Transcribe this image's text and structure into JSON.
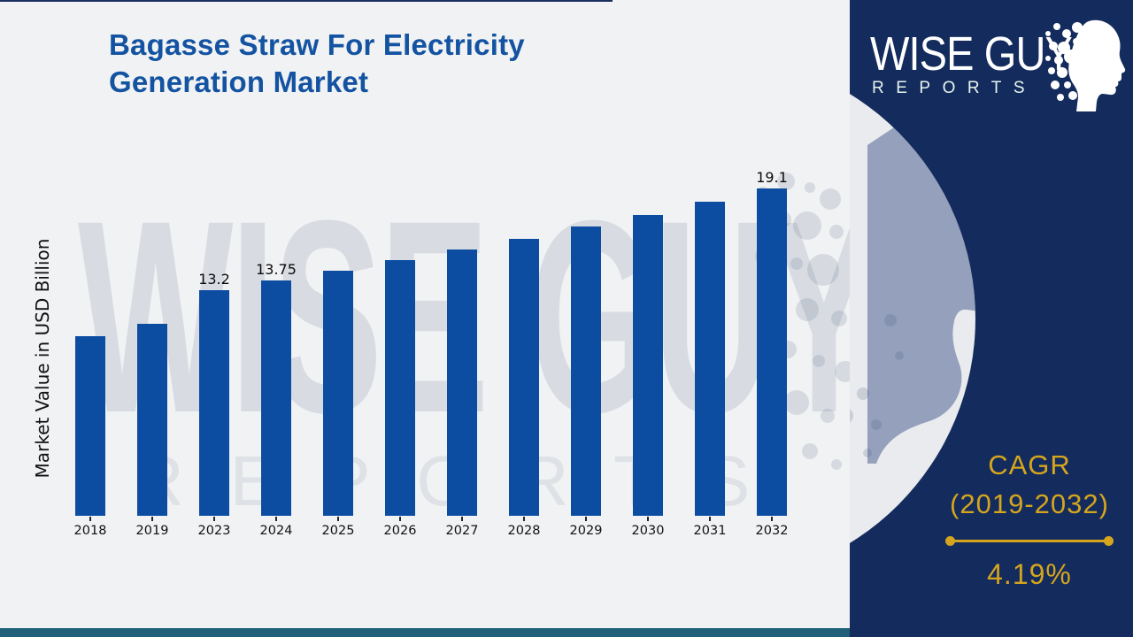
{
  "header": {
    "title_line1": "Bagasse Straw For Electricity",
    "title_line2": "Generation Market"
  },
  "brand": {
    "name_top": "WISE GUY",
    "name_bottom": "REPORTS"
  },
  "watermark": {
    "line1": "WISE GUY",
    "line2": "REPORTS"
  },
  "cagr": {
    "label": "CAGR",
    "range": "(2019-2032)",
    "value": "4.19%"
  },
  "colors": {
    "background": "#f1f2f3",
    "bar_blue": "#0c4da2",
    "title_blue": "#1353a1",
    "panel_navy": "#142b5d",
    "gold": "#d5a51d",
    "teal_strip": "#206079"
  },
  "chart_data": {
    "type": "bar",
    "title": "Bagasse Straw For Electricity Generation Market",
    "xlabel": "",
    "ylabel": "Market Value in USD Billion",
    "categories": [
      "2018",
      "2019",
      "2023",
      "2024",
      "2025",
      "2026",
      "2027",
      "2028",
      "2029",
      "2030",
      "2031",
      "2032"
    ],
    "values": [
      10.5,
      11.2,
      13.2,
      13.75,
      14.33,
      14.93,
      15.55,
      16.2,
      16.88,
      17.59,
      18.33,
      19.1
    ],
    "data_labels": [
      "",
      "",
      "13.2",
      "13.75",
      "",
      "",
      "",
      "",
      "",
      "",
      "",
      "19.1"
    ],
    "ylim": [
      0,
      21
    ],
    "grid": false,
    "legend": "none",
    "bar_color": "#0c4da2"
  }
}
